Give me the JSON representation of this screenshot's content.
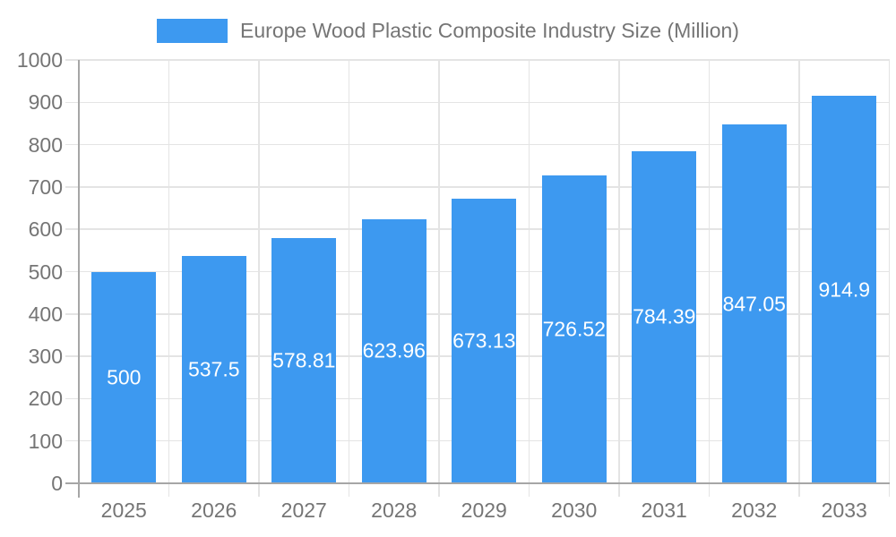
{
  "chart_data": {
    "type": "bar",
    "title": "Europe Wood Plastic Composite Industry Size (Million)",
    "categories": [
      "2025",
      "2026",
      "2027",
      "2028",
      "2029",
      "2030",
      "2031",
      "2032",
      "2033"
    ],
    "values": [
      500,
      537.5,
      578.81,
      623.96,
      673.13,
      726.52,
      784.39,
      847.05,
      914.9
    ],
    "value_labels": [
      "500",
      "537.5",
      "578.81",
      "623.96",
      "673.13",
      "726.52",
      "784.39",
      "847.05",
      "914.9"
    ],
    "series_name": "Europe Wood Plastic Composite Industry Size (Million)",
    "xlabel": "",
    "ylabel": "",
    "ylim": [
      0,
      1000
    ],
    "ytick_interval": 100,
    "ytick_labels": [
      "0",
      "100",
      "200",
      "300",
      "400",
      "500",
      "600",
      "700",
      "800",
      "900",
      "1000"
    ],
    "grid": true,
    "legend_position": "top",
    "value_labels_inside_bars": true
  },
  "colors": {
    "bar": "#3D99F0",
    "text_gray": "#757575",
    "gridline": "#E4E4E4",
    "axis_line": "#A6A6A6",
    "bar_label_text": "#FFFFFF",
    "background": "#FFFFFF"
  }
}
